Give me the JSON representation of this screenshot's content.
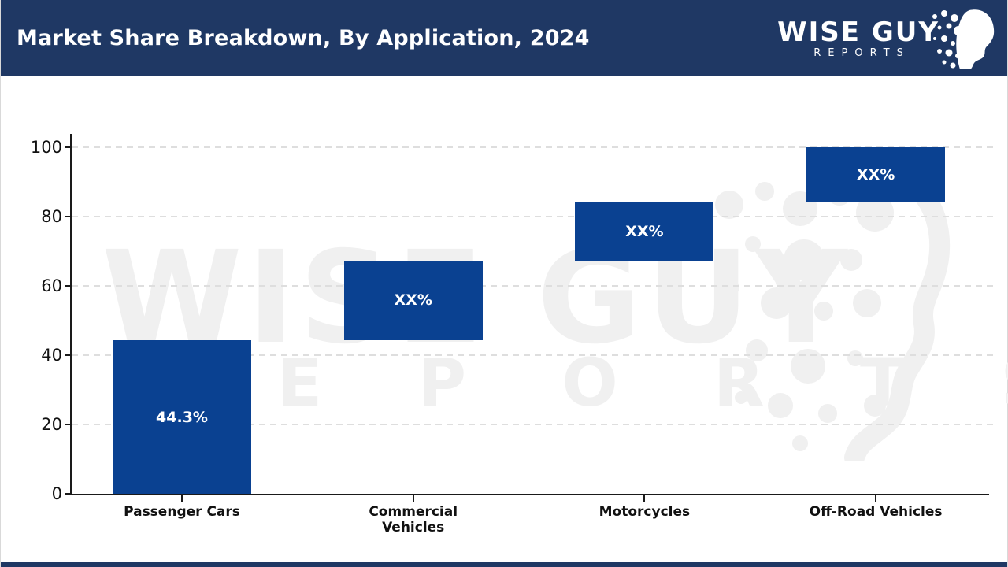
{
  "header": {
    "title": "Market Share Breakdown, By Application, 2024",
    "logo": {
      "line1": "WISE GUY",
      "line2": "REPORTS"
    }
  },
  "watermark": {
    "line1": "WISE GUY",
    "line2": "R E P O R T S"
  },
  "chart_data": {
    "type": "bar",
    "subtype": "waterfall",
    "title": "Market Share Breakdown, By Application, 2024",
    "categories": [
      "Passenger Cars",
      "Commercial Vehicles",
      "Motorcycles",
      "Off-Road Vehicles"
    ],
    "x_tick_labels": [
      "Passenger Cars",
      "Commercial\nVehicles",
      "Motorcycles",
      "Off-Road Vehicles"
    ],
    "segments": [
      {
        "category": "Passenger Cars",
        "start": 0,
        "end": 44.3,
        "label": "44.3%"
      },
      {
        "category": "Commercial Vehicles",
        "start": 44.3,
        "end": 67.3,
        "label": "XX%"
      },
      {
        "category": "Motorcycles",
        "start": 67.3,
        "end": 84.1,
        "label": "XX%"
      },
      {
        "category": "Off-Road Vehicles",
        "start": 84.1,
        "end": 100,
        "label": "XX%"
      }
    ],
    "yticks": [
      0,
      20,
      40,
      60,
      80,
      100
    ],
    "ylim": [
      0,
      100
    ],
    "grid": "horizontal-dashed",
    "legend": "none",
    "bar_color": "#0a4191",
    "bar_label_color": "#ffffff"
  },
  "colors": {
    "header_bg": "#1f3864",
    "bar": "#0a4191",
    "axis": "#1a1a1a",
    "gridline": "#dedede",
    "watermark": "#f0f0f0"
  }
}
